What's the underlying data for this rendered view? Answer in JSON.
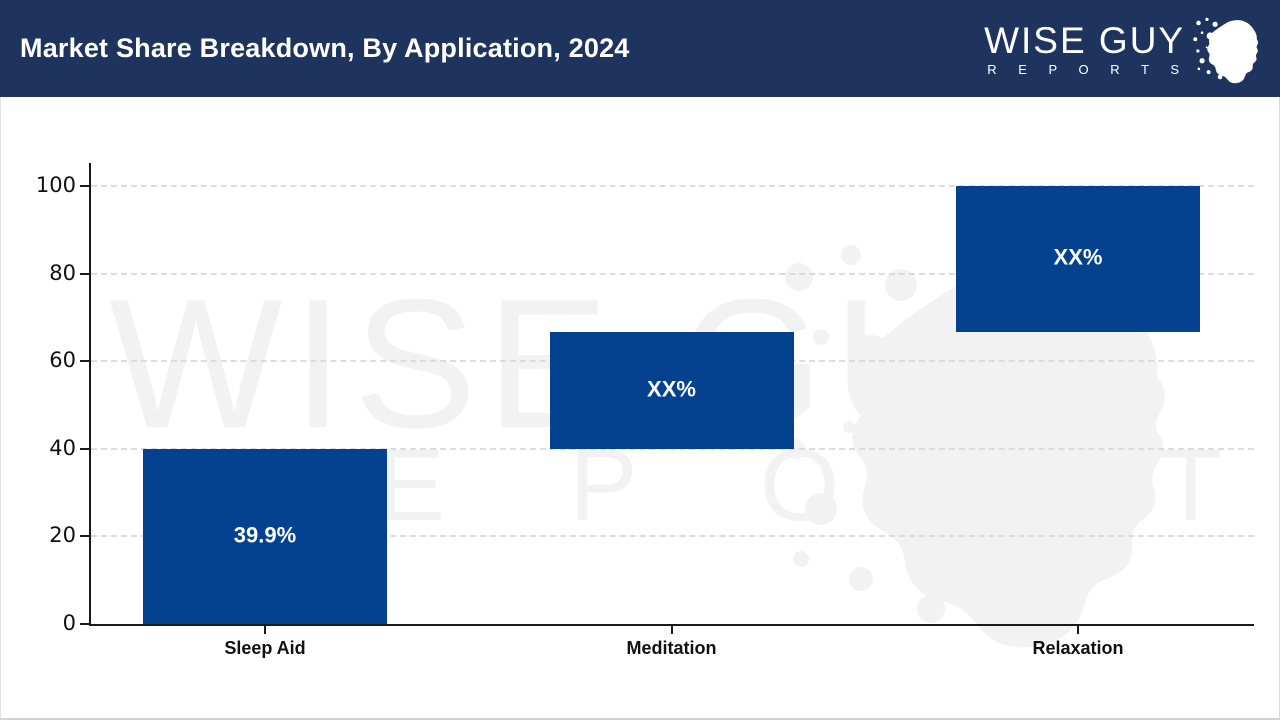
{
  "header": {
    "title": "Market Share Breakdown, By Application, 2024",
    "bg_color": "#1e345e",
    "logo": {
      "line1": "WISE GUY",
      "line2": "R E P O R T S"
    }
  },
  "watermark": {
    "line1": "WISE GUY",
    "line2": "R E P O R T S"
  },
  "chart_data": {
    "type": "bar",
    "subtype": "floating-segment-waterfall",
    "title": "Market Share Breakdown, By Application, 2024",
    "categories": [
      "Sleep Aid",
      "Meditation",
      "Relaxation"
    ],
    "bars": [
      {
        "category": "Sleep Aid",
        "start": 0,
        "end": 39.9,
        "label": "39.9%"
      },
      {
        "category": "Meditation",
        "start": 39.9,
        "end": 66.6,
        "label": "XX%"
      },
      {
        "category": "Relaxation",
        "start": 66.6,
        "end": 100,
        "label": "XX%"
      }
    ],
    "ylim": [
      0,
      105
    ],
    "yticks": [
      0,
      20,
      40,
      60,
      80,
      100
    ],
    "grid": "dashed-horizontal",
    "bar_color": "#04418f",
    "bar_label_color": "#ffffff",
    "axis_color": "#1a1a1a",
    "xlabel": "",
    "ylabel": "",
    "legend": null
  }
}
